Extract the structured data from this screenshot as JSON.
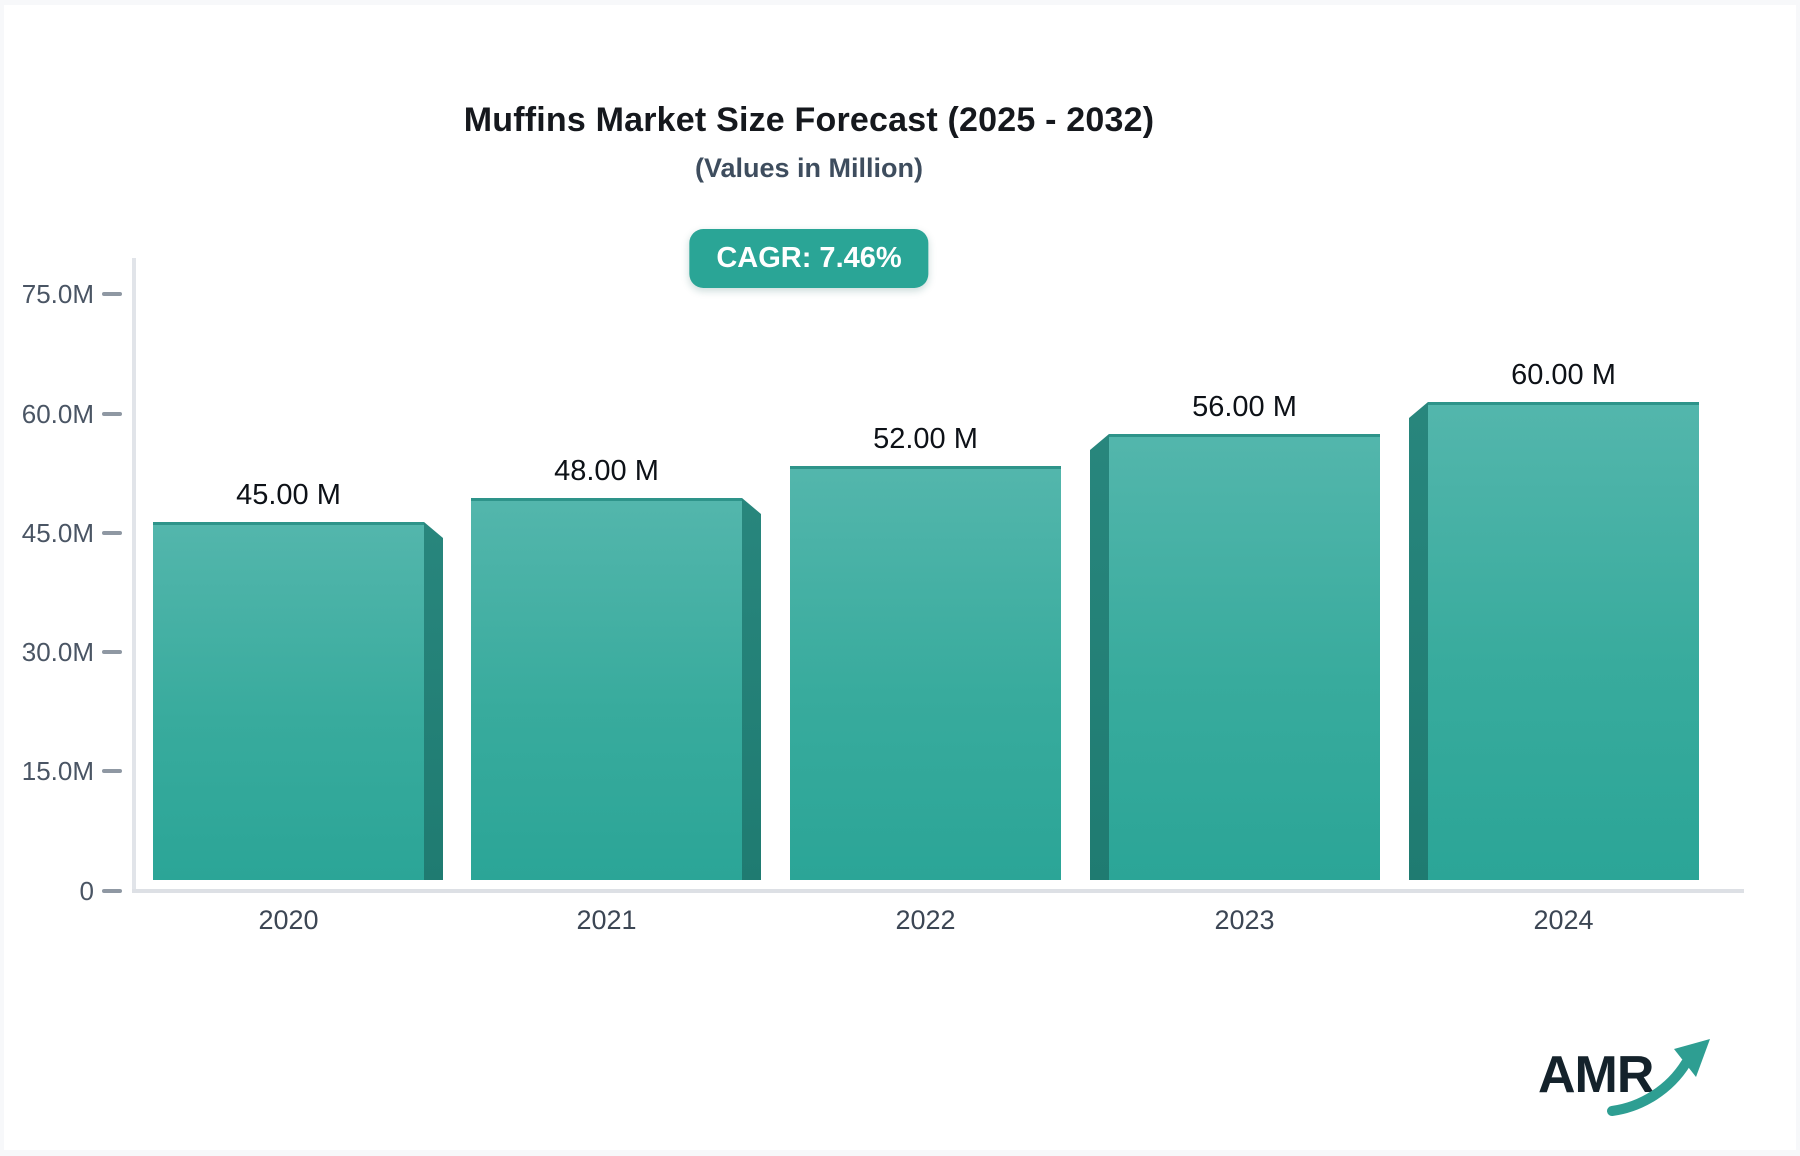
{
  "header": {
    "title": "Muffins Market Size Forecast (2025 - 2032)",
    "subtitle": "(Values in Million)",
    "cagr_badge": "CAGR: 7.46%"
  },
  "chart_data": {
    "type": "bar",
    "title": "Muffins Market Size Forecast (2025 - 2032)",
    "subtitle": "(Values in Million)",
    "unit": "Million",
    "cagr_percent": 7.46,
    "categories": [
      "2020",
      "2021",
      "2022",
      "2023",
      "2024"
    ],
    "values": [
      45,
      48,
      52,
      56,
      60
    ],
    "value_labels": [
      "45.00 M",
      "48.00 M",
      "52.00 M",
      "56.00 M",
      "60.00 M"
    ],
    "ylim": [
      0,
      75
    ],
    "ytick_values": [
      75,
      60,
      45,
      30,
      15,
      0
    ],
    "ytick_labels": [
      "75.0M",
      "60.0M",
      "45.0M",
      "30.0M",
      "15.0M",
      "0"
    ],
    "grid": false,
    "legend": false,
    "bar_face_top_color": "#53b6ac",
    "bar_face_bottom_color": "#2ba597",
    "bar_side_color": "#1f7b71"
  },
  "badge_colors": {
    "background": "#2aa596",
    "text": "#ffffff"
  },
  "logo": {
    "text": "AMR",
    "arrow_color": "#2e9e92"
  }
}
